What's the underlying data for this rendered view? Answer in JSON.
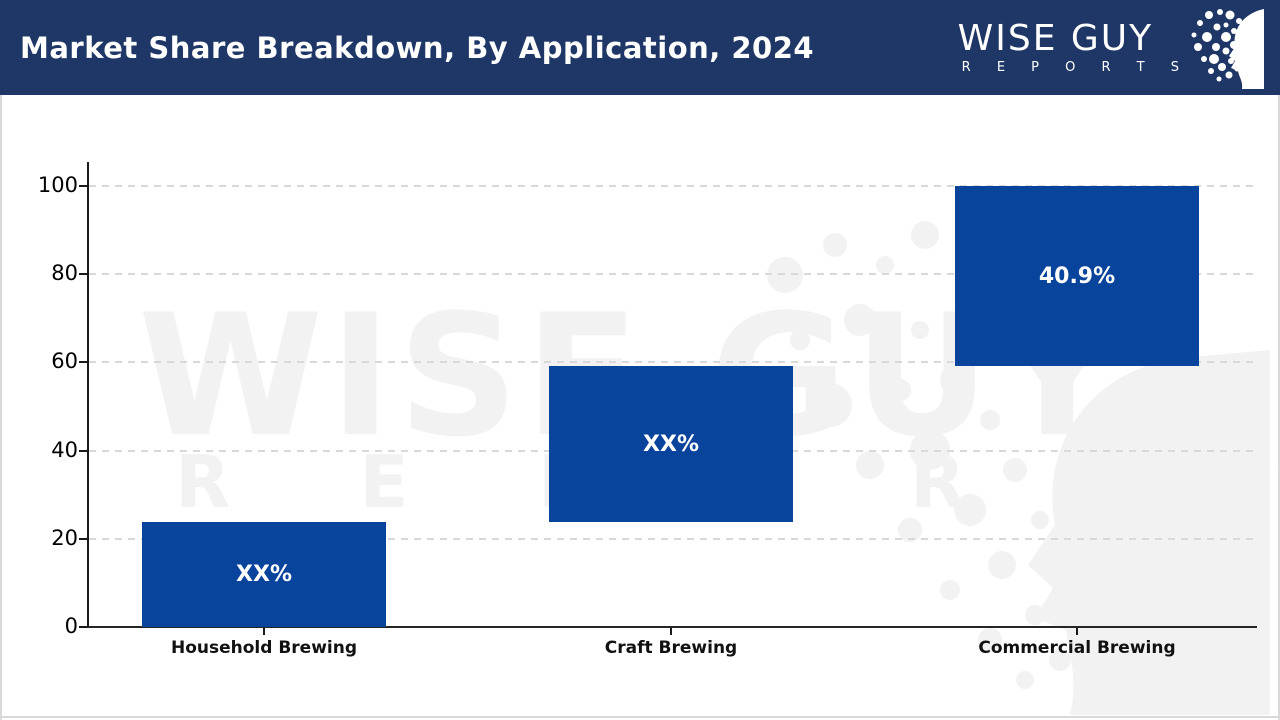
{
  "header": {
    "title": "Market Share Breakdown, By Application, 2024",
    "bg_color": "#1f3766",
    "logo": {
      "line1": "WISE GUY",
      "line2": "R E P O R T S",
      "icon": "dotted-face-profile"
    }
  },
  "watermark": {
    "line1": "WISE GUY",
    "line2": "R E P O R T S"
  },
  "chart_data": {
    "type": "bar",
    "subtype": "waterfall",
    "title": "Market Share Breakdown, By Application, 2024",
    "categories": [
      "Household Brewing",
      "Craft Brewing",
      "Commercial Brewing"
    ],
    "series": [
      {
        "name": "Market Share",
        "segments": [
          {
            "category": "Household Brewing",
            "start": 0,
            "end": 23.7,
            "label": "XX%"
          },
          {
            "category": "Craft Brewing",
            "start": 23.7,
            "end": 59.1,
            "label": "XX%"
          },
          {
            "category": "Commercial Brewing",
            "start": 59.1,
            "end": 100,
            "label": "40.9%"
          }
        ]
      }
    ],
    "xlabel": "",
    "ylabel": "",
    "yticks": [
      0,
      20,
      40,
      60,
      80,
      100
    ],
    "ylim": [
      0,
      105.5
    ],
    "grid": {
      "horizontal": true,
      "style": "dashed",
      "color": "#d9d9d9"
    },
    "legend": "none",
    "bar_color": "#08439c",
    "bar_label_color": "#ffffff",
    "axis_color": "#1a1a1a"
  }
}
